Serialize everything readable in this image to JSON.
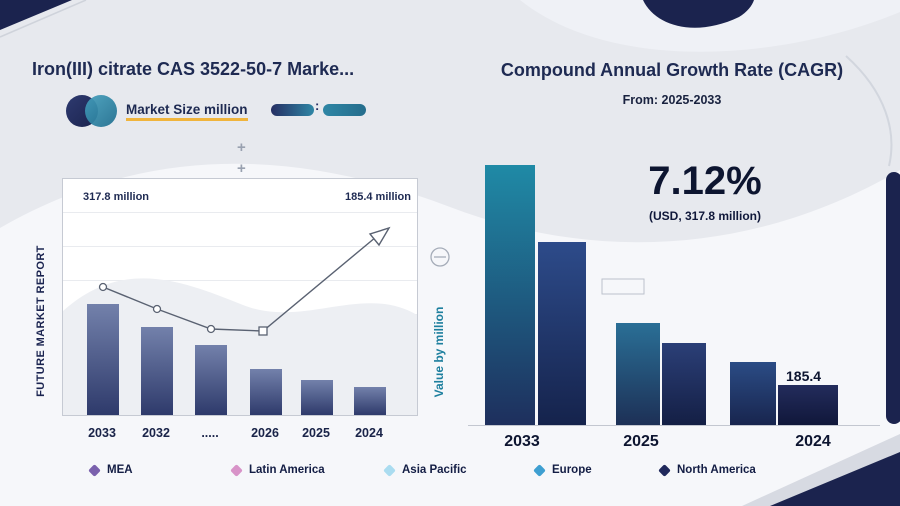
{
  "colors": {
    "navy": "#1b234e",
    "title": "#1e2a52",
    "teal": "#1d7f9e",
    "accent_underline": "#f0b43c",
    "left_bar_top": "#7381ab",
    "left_bar_bottom": "#2e3a6b",
    "right_bar_gradients": [
      [
        "#1f8aa6",
        "#1e2f5d"
      ],
      [
        "#2d4b8a",
        "#15234c"
      ],
      [
        "#2a6f96",
        "#1d3056"
      ],
      [
        "#2b3f77",
        "#141f45"
      ],
      [
        "#2b4c85",
        "#18254e"
      ],
      [
        "#232c5c",
        "#10173a"
      ]
    ]
  },
  "left_panel": {
    "title": "Iron(III) citrate CAS 3522-50-7 Marke...",
    "legend_label": "Market Size million",
    "side_label": "FUTURE MARKET REPORT",
    "value_start": "317.8 million",
    "value_end": "185.4 million"
  },
  "right_panel": {
    "title": "Compound Annual Growth Rate (CAGR)",
    "subtitle": "From: 2025-2033",
    "cagr_value": "7.12%",
    "cagr_note": "(USD, 317.8 million)",
    "ylabel": "Value by million",
    "annotation": "185.4"
  },
  "decor": {
    "plus": "+",
    "colon": ":"
  },
  "bottom_legend": {
    "items": [
      {
        "label": "MEA",
        "color": "#7a61ad"
      },
      {
        "label": "Latin America",
        "color": "#d893c8"
      },
      {
        "label": "Asia Pacific",
        "color": "#aadcf0"
      },
      {
        "label": "Europe",
        "color": "#3e9fd1"
      },
      {
        "label": "North America",
        "color": "#20295c"
      }
    ]
  },
  "chart_data": [
    {
      "type": "bar",
      "title": "Iron(III) citrate CAS 3522-50-7 Marke...",
      "ylabel": "Market Size million",
      "categories": [
        "2033",
        "2032",
        ".....",
        "2026",
        "2025",
        "2024"
      ],
      "values": [
        317.8,
        281,
        252,
        213,
        196,
        185.4
      ],
      "ylim": [
        140,
        460
      ],
      "grid": true,
      "data_labels": {
        "2033": "317.8 million",
        "2024": "185.4 million"
      },
      "overlay": "declining trend line with markers and an arrow rising toward the 185.4 million label"
    },
    {
      "type": "bar",
      "title": "Compound Annual Growth Rate (CAGR)",
      "subtitle": "From: 2025-2033",
      "ylabel": "Value by million",
      "categories": [
        "2033",
        "2025",
        "2024"
      ],
      "series": [
        {
          "name": "series_1",
          "values": [
            317.8,
            125,
            77
          ]
        },
        {
          "name": "series_2",
          "values": [
            224,
            100,
            49
          ]
        }
      ],
      "ylim": [
        0,
        340
      ],
      "grid": false,
      "cagr": "7.12%",
      "cagr_note": "(USD, 317.8 million)",
      "annotation": "185.4"
    }
  ]
}
